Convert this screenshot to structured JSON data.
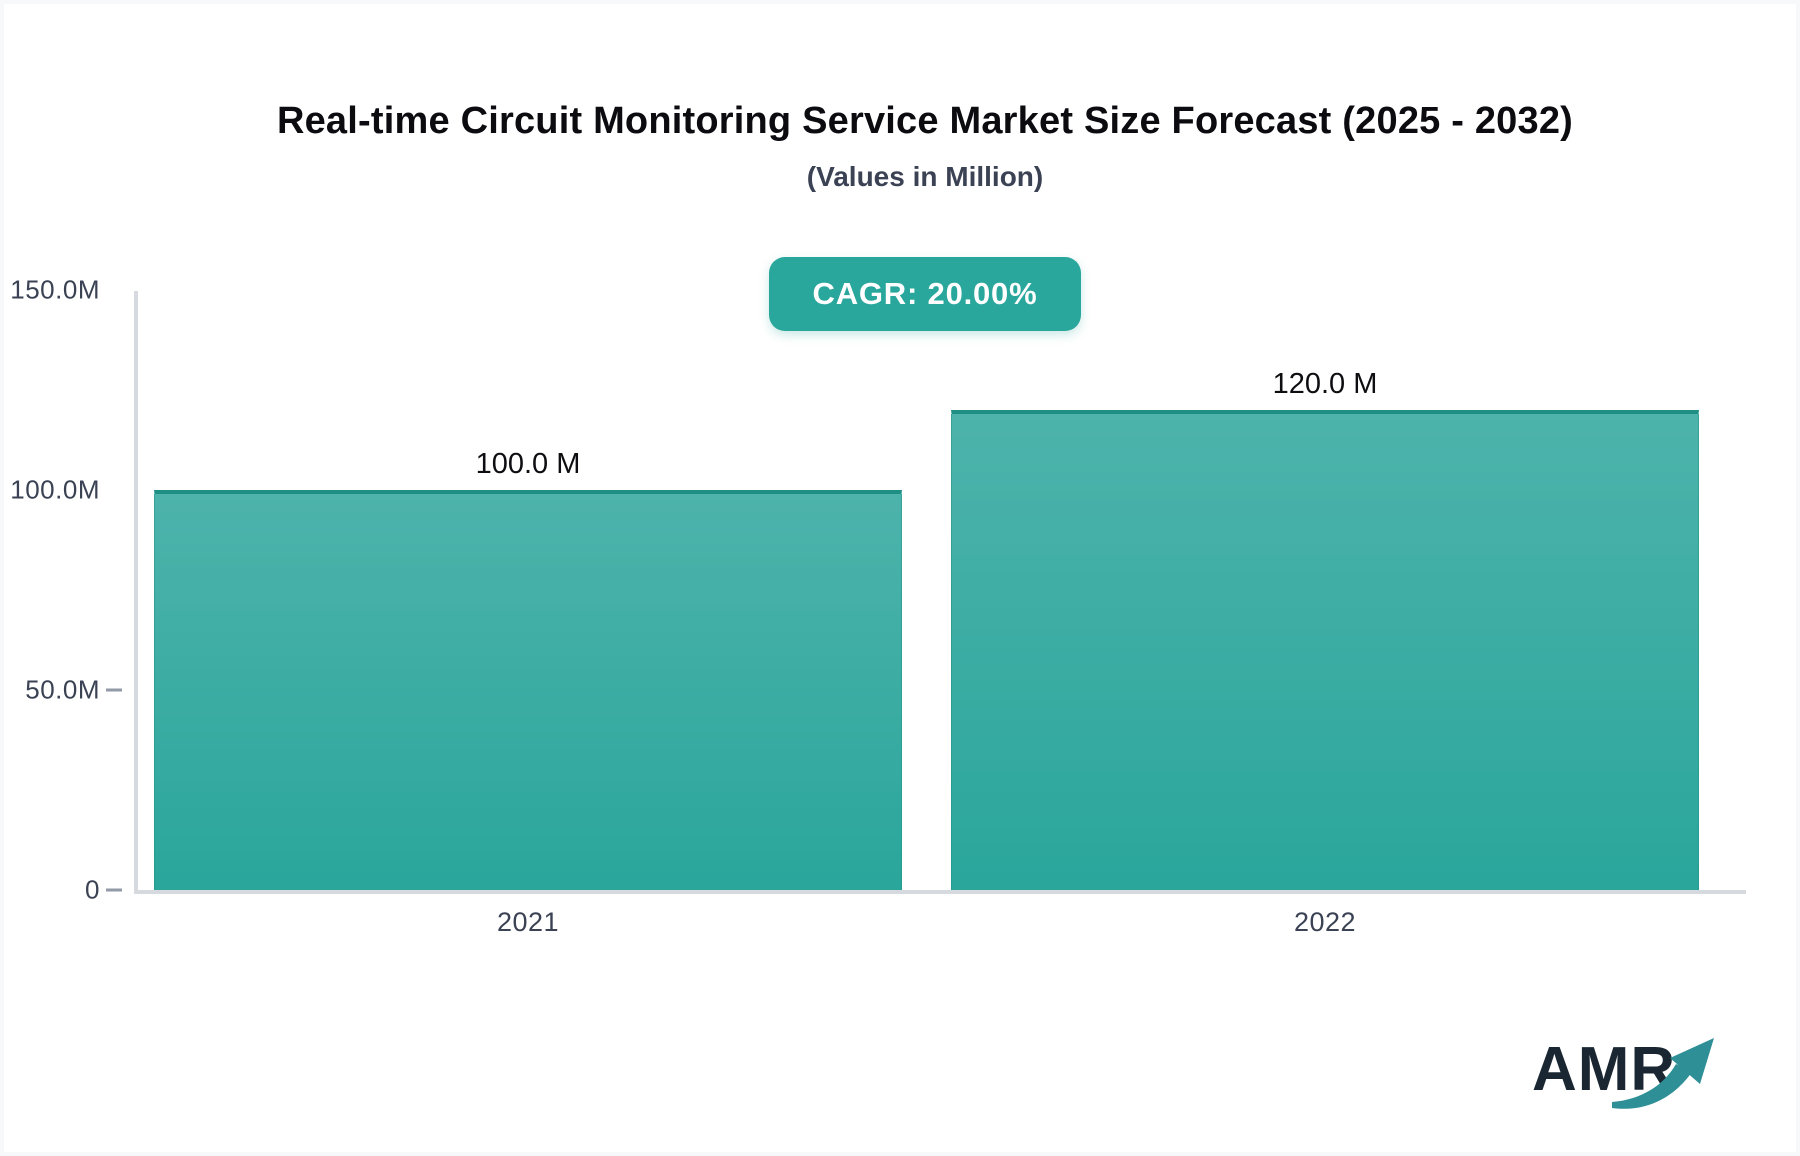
{
  "header": {
    "title": "Real-time Circuit Monitoring Service Market Size Forecast (2025 - 2032)",
    "subtitle": "(Values in Million)"
  },
  "cagr_badge": {
    "label": "CAGR: 20.00%",
    "background": "#2aa79c",
    "text_color": "#ffffff"
  },
  "chart_data": {
    "type": "bar",
    "title": "Real-time Circuit Monitoring Service Market Size Forecast (2025 - 2032)",
    "subtitle": "(Values in Million)",
    "categories": [
      "2021",
      "2022"
    ],
    "values": [
      100.0,
      120.0
    ],
    "bar_labels": [
      "100.0 M",
      "120.0 M"
    ],
    "unit": "Million",
    "ylim": [
      0,
      150
    ],
    "y_ticks": [
      {
        "label": "150.0M",
        "value": 150,
        "dash": false
      },
      {
        "label": "100.0M",
        "value": 100,
        "dash": false
      },
      {
        "label": "50.0M",
        "value": 50,
        "dash": true
      },
      {
        "label": "0",
        "value": 0,
        "dash": true
      }
    ],
    "grid": false,
    "legend": false,
    "colors": {
      "bar_top": "#4db3ab",
      "bar_bottom": "#2aa69b",
      "bar_border_top": "#1f8e85",
      "axis_line": "#d6d9de",
      "tick_text": "#3a4254",
      "value_label_text": "#0e0e12"
    }
  },
  "logo": {
    "text": "AMR",
    "text_color": "#1a2733",
    "arrow_color": "#2f8f96"
  }
}
